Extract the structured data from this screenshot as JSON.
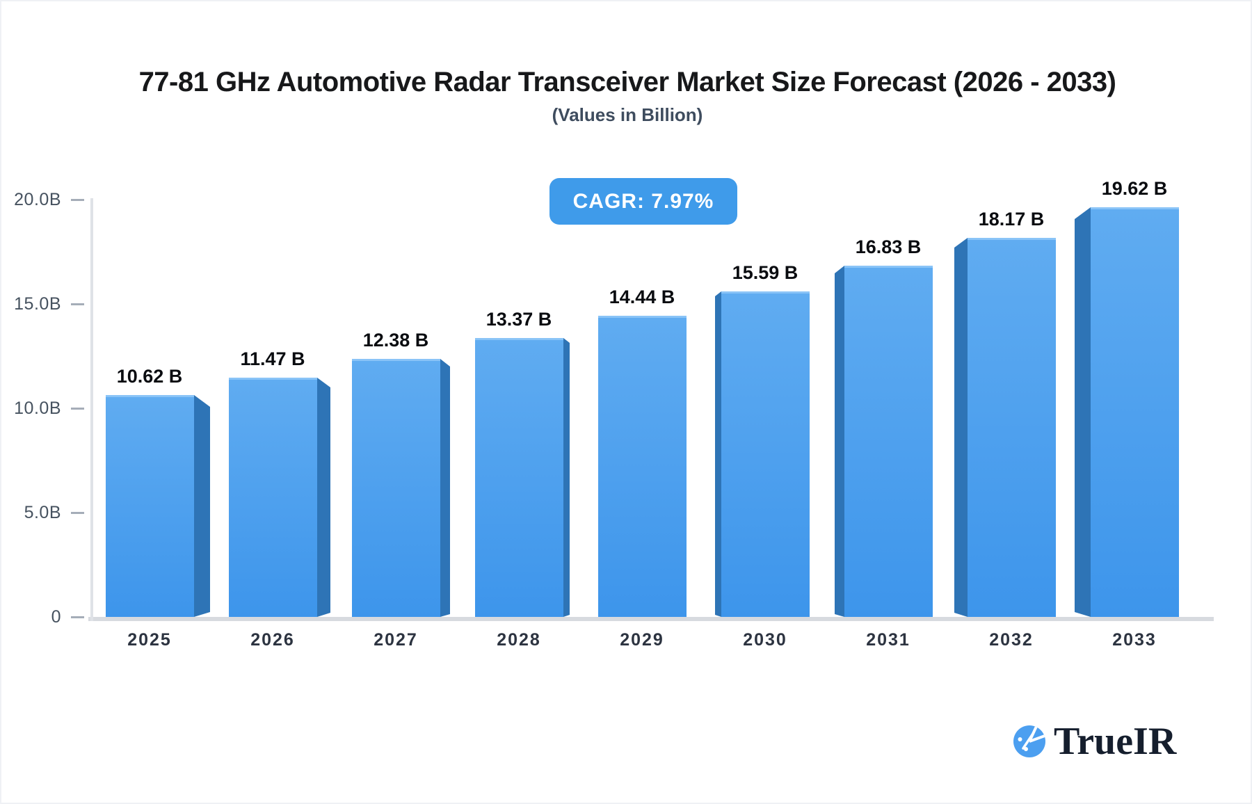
{
  "header": {
    "title": "77-81 GHz Automotive Radar Transceiver Market Size Forecast (2026 - 2033)",
    "subtitle": "(Values in Billion)"
  },
  "badge": {
    "label": "CAGR: 7.97%"
  },
  "chart_data": {
    "type": "bar",
    "title": "77-81 GHz Automotive Radar Transceiver Market Size Forecast (2026 - 2033)",
    "subtitle": "(Values in Billion)",
    "cagr": "7.97%",
    "categories": [
      "2025",
      "2026",
      "2027",
      "2028",
      "2029",
      "2030",
      "2031",
      "2032",
      "2033"
    ],
    "values": [
      10.62,
      11.47,
      12.38,
      13.37,
      14.44,
      15.59,
      16.83,
      18.17,
      19.62
    ],
    "value_labels": [
      "10.62 B",
      "11.47 B",
      "12.38 B",
      "13.37 B",
      "14.44 B",
      "15.59 B",
      "16.83 B",
      "18.17 B",
      "19.62 B"
    ],
    "unit": "Billion",
    "ylim": [
      0,
      20
    ],
    "yticks": [
      {
        "label": "20.0B",
        "value": 20
      },
      {
        "label": "15.0B",
        "value": 15
      },
      {
        "label": "10.0B",
        "value": 10
      },
      {
        "label": "5.0B",
        "value": 5
      },
      {
        "label": "0",
        "value": 0
      }
    ],
    "grid": false,
    "legend": false,
    "style": "3d-perspective-bars"
  },
  "colors": {
    "bar_front_top": "#60acf1",
    "bar_front_bottom": "#3d95eb",
    "bar_top_highlight": "#8fc7f7",
    "bar_side": "#2e74b6",
    "badge_bg": "#3f9bea",
    "axis_line": "#dfe2e7",
    "baseline": "#d7dadf",
    "tick": "#a5adb8",
    "tick_label": "#46525f",
    "year_label": "#2c3340",
    "value_label": "#0a0c10",
    "logo_blue": "#4c9ff0",
    "logo_navy": "#151e2d"
  },
  "logo": {
    "text": "TrueIR",
    "icon": "pie-percent-icon"
  }
}
